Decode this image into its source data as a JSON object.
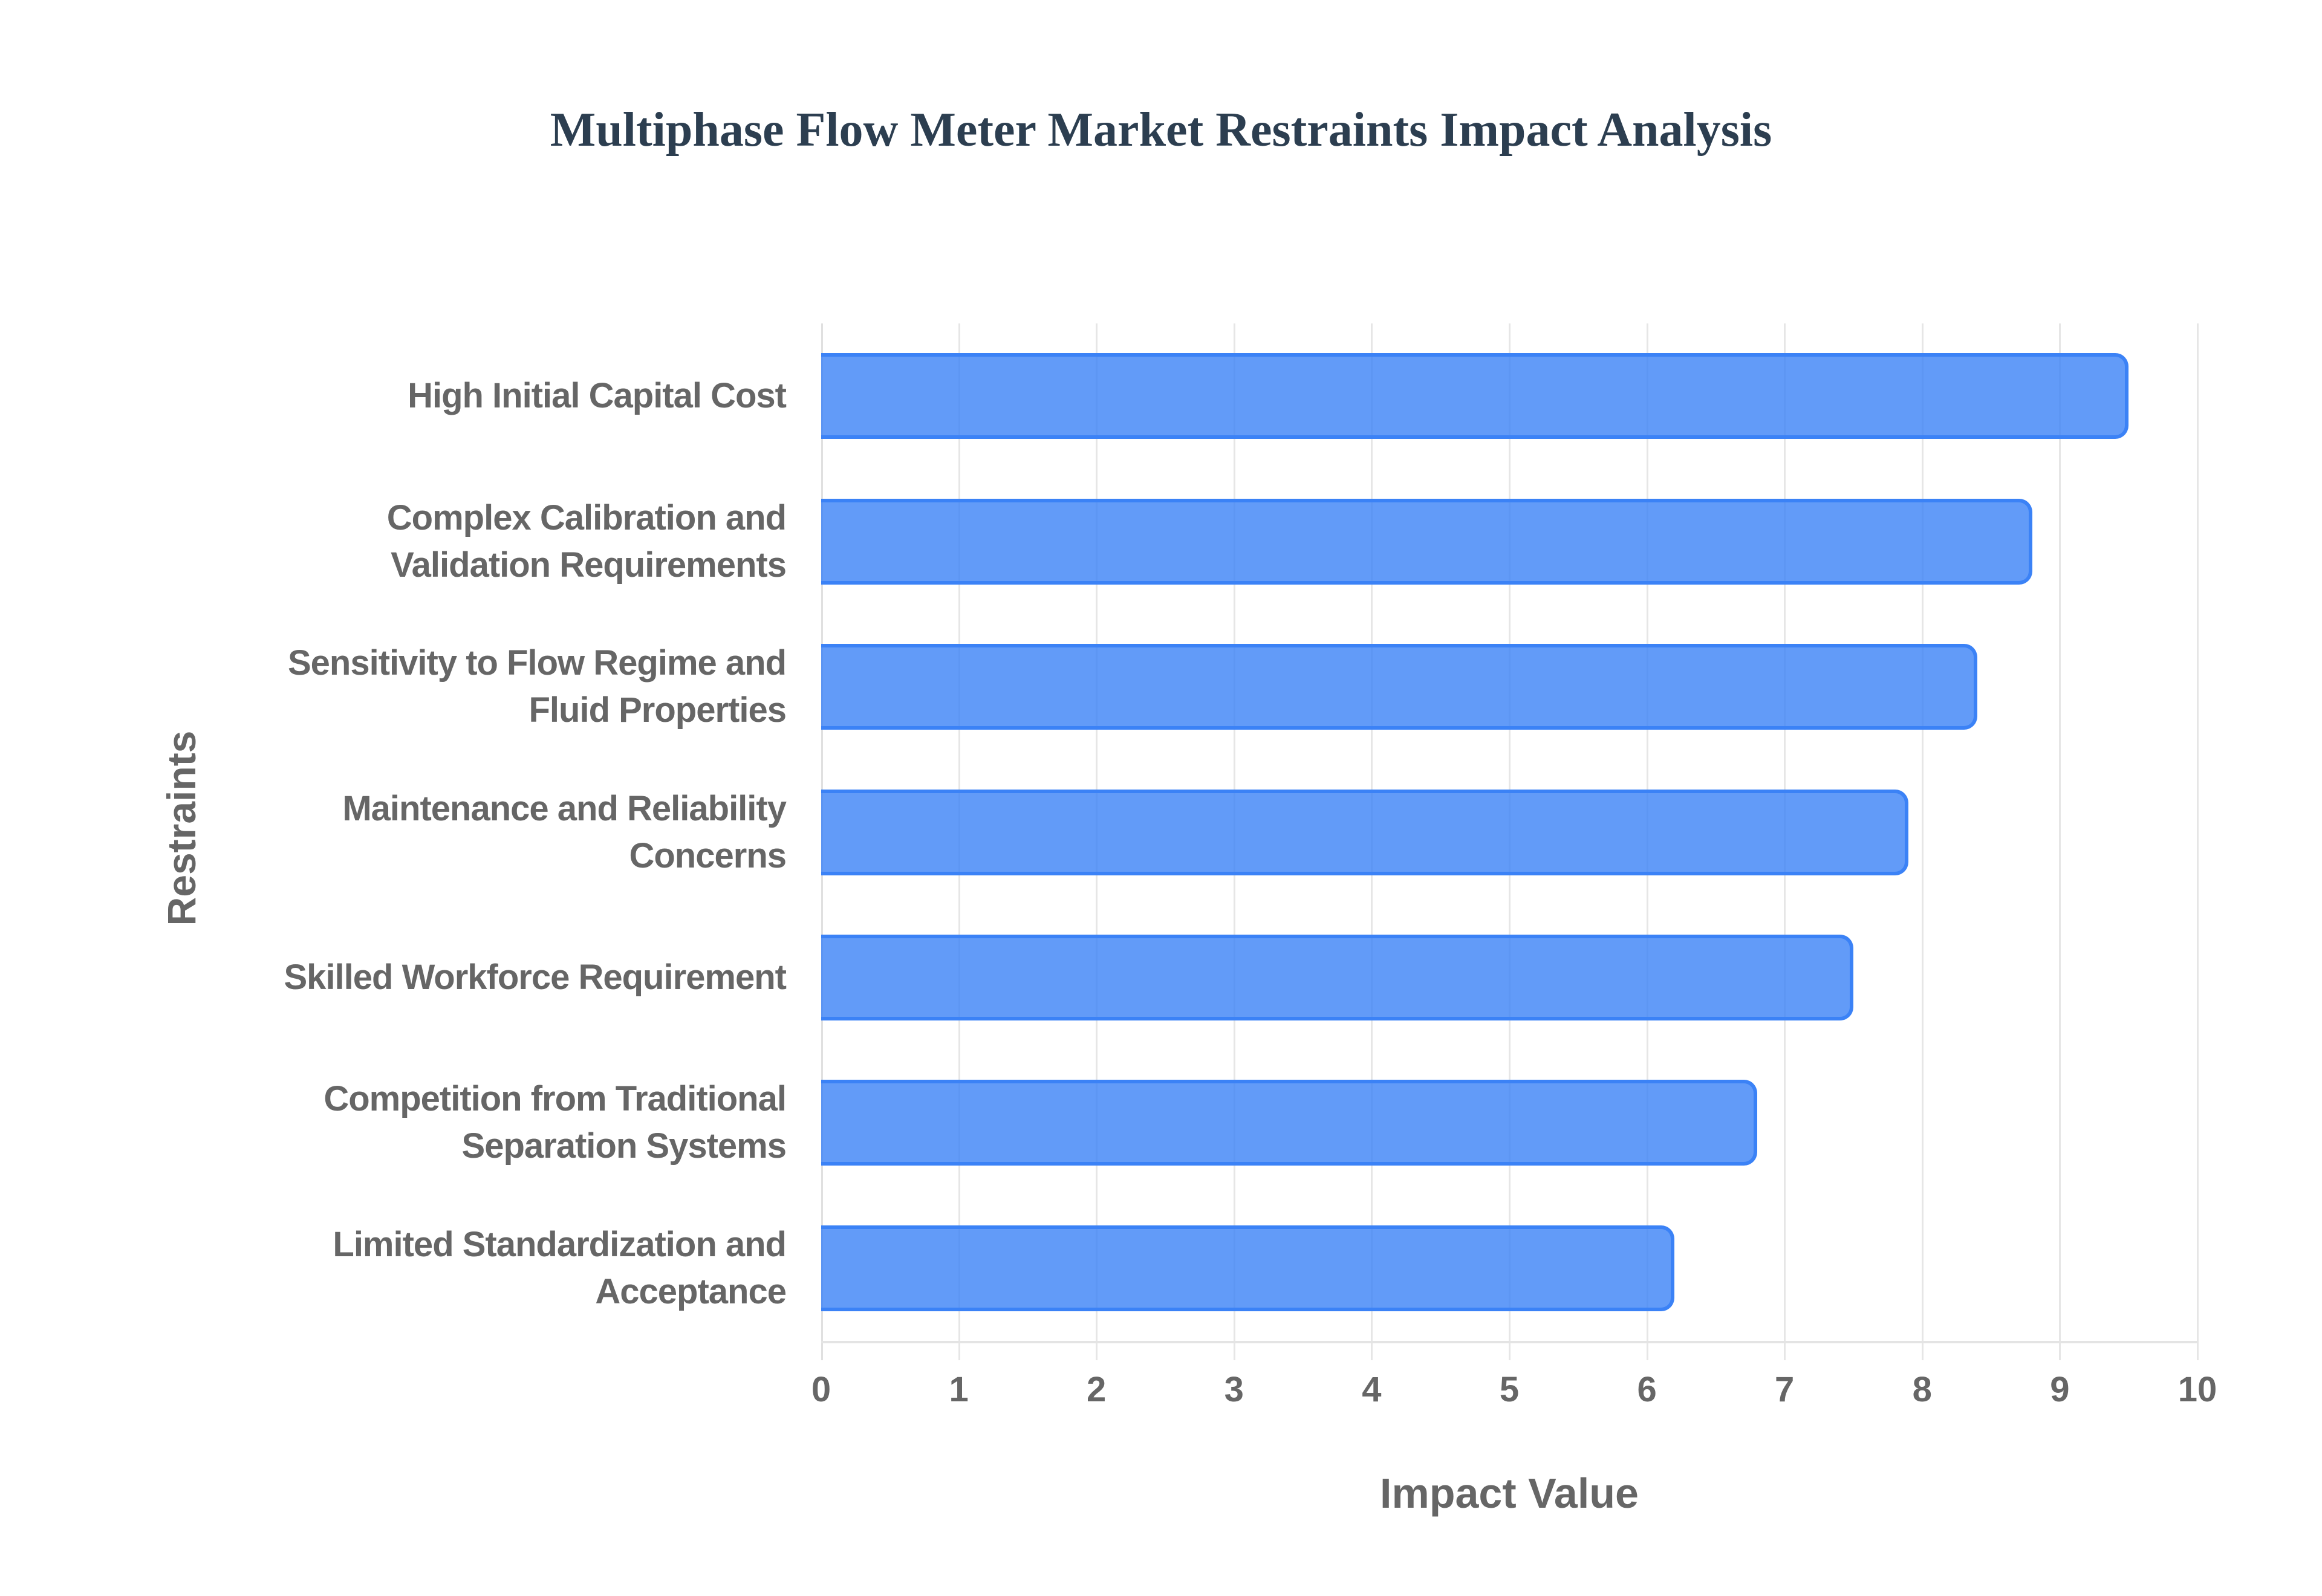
{
  "title": "Multiphase Flow Meter Market Restraints Impact Analysis",
  "colors": {
    "bar_fill": "rgba(59,130,246,0.8)",
    "bar_border": "#3b82f6",
    "title": "#2c3e50",
    "text": "#666666",
    "grid": "#e6e6e6"
  },
  "chart_data": {
    "type": "bar",
    "orientation": "horizontal",
    "title": "Multiphase Flow Meter Market Restraints Impact Analysis",
    "xlabel": "Impact Value",
    "ylabel": "Restraints",
    "xlim": [
      0,
      10
    ],
    "x_ticks": [
      "0",
      "1",
      "2",
      "3",
      "4",
      "5",
      "6",
      "7",
      "8",
      "9",
      "10"
    ],
    "grid": true,
    "legend": "none",
    "categories": [
      "High Initial Capital Cost",
      "Complex Calibration and Validation Requirements",
      "Sensitivity to Flow Regime and Fluid Properties",
      "Maintenance and Reliability Concerns",
      "Skilled Workforce Requirement",
      "Competition from Traditional Separation Systems",
      "Limited Standardization and Acceptance"
    ],
    "category_lines": [
      [
        "High Initial Capital Cost"
      ],
      [
        "Complex Calibration and",
        "Validation Requirements"
      ],
      [
        "Sensitivity to Flow Regime and",
        "Fluid Properties"
      ],
      [
        "Maintenance and Reliability",
        "Concerns"
      ],
      [
        "Skilled Workforce Requirement"
      ],
      [
        "Competition from Traditional",
        "Separation Systems"
      ],
      [
        "Limited Standardization and",
        "Acceptance"
      ]
    ],
    "values": [
      9.5,
      8.8,
      8.4,
      7.9,
      7.5,
      6.8,
      6.2
    ]
  }
}
